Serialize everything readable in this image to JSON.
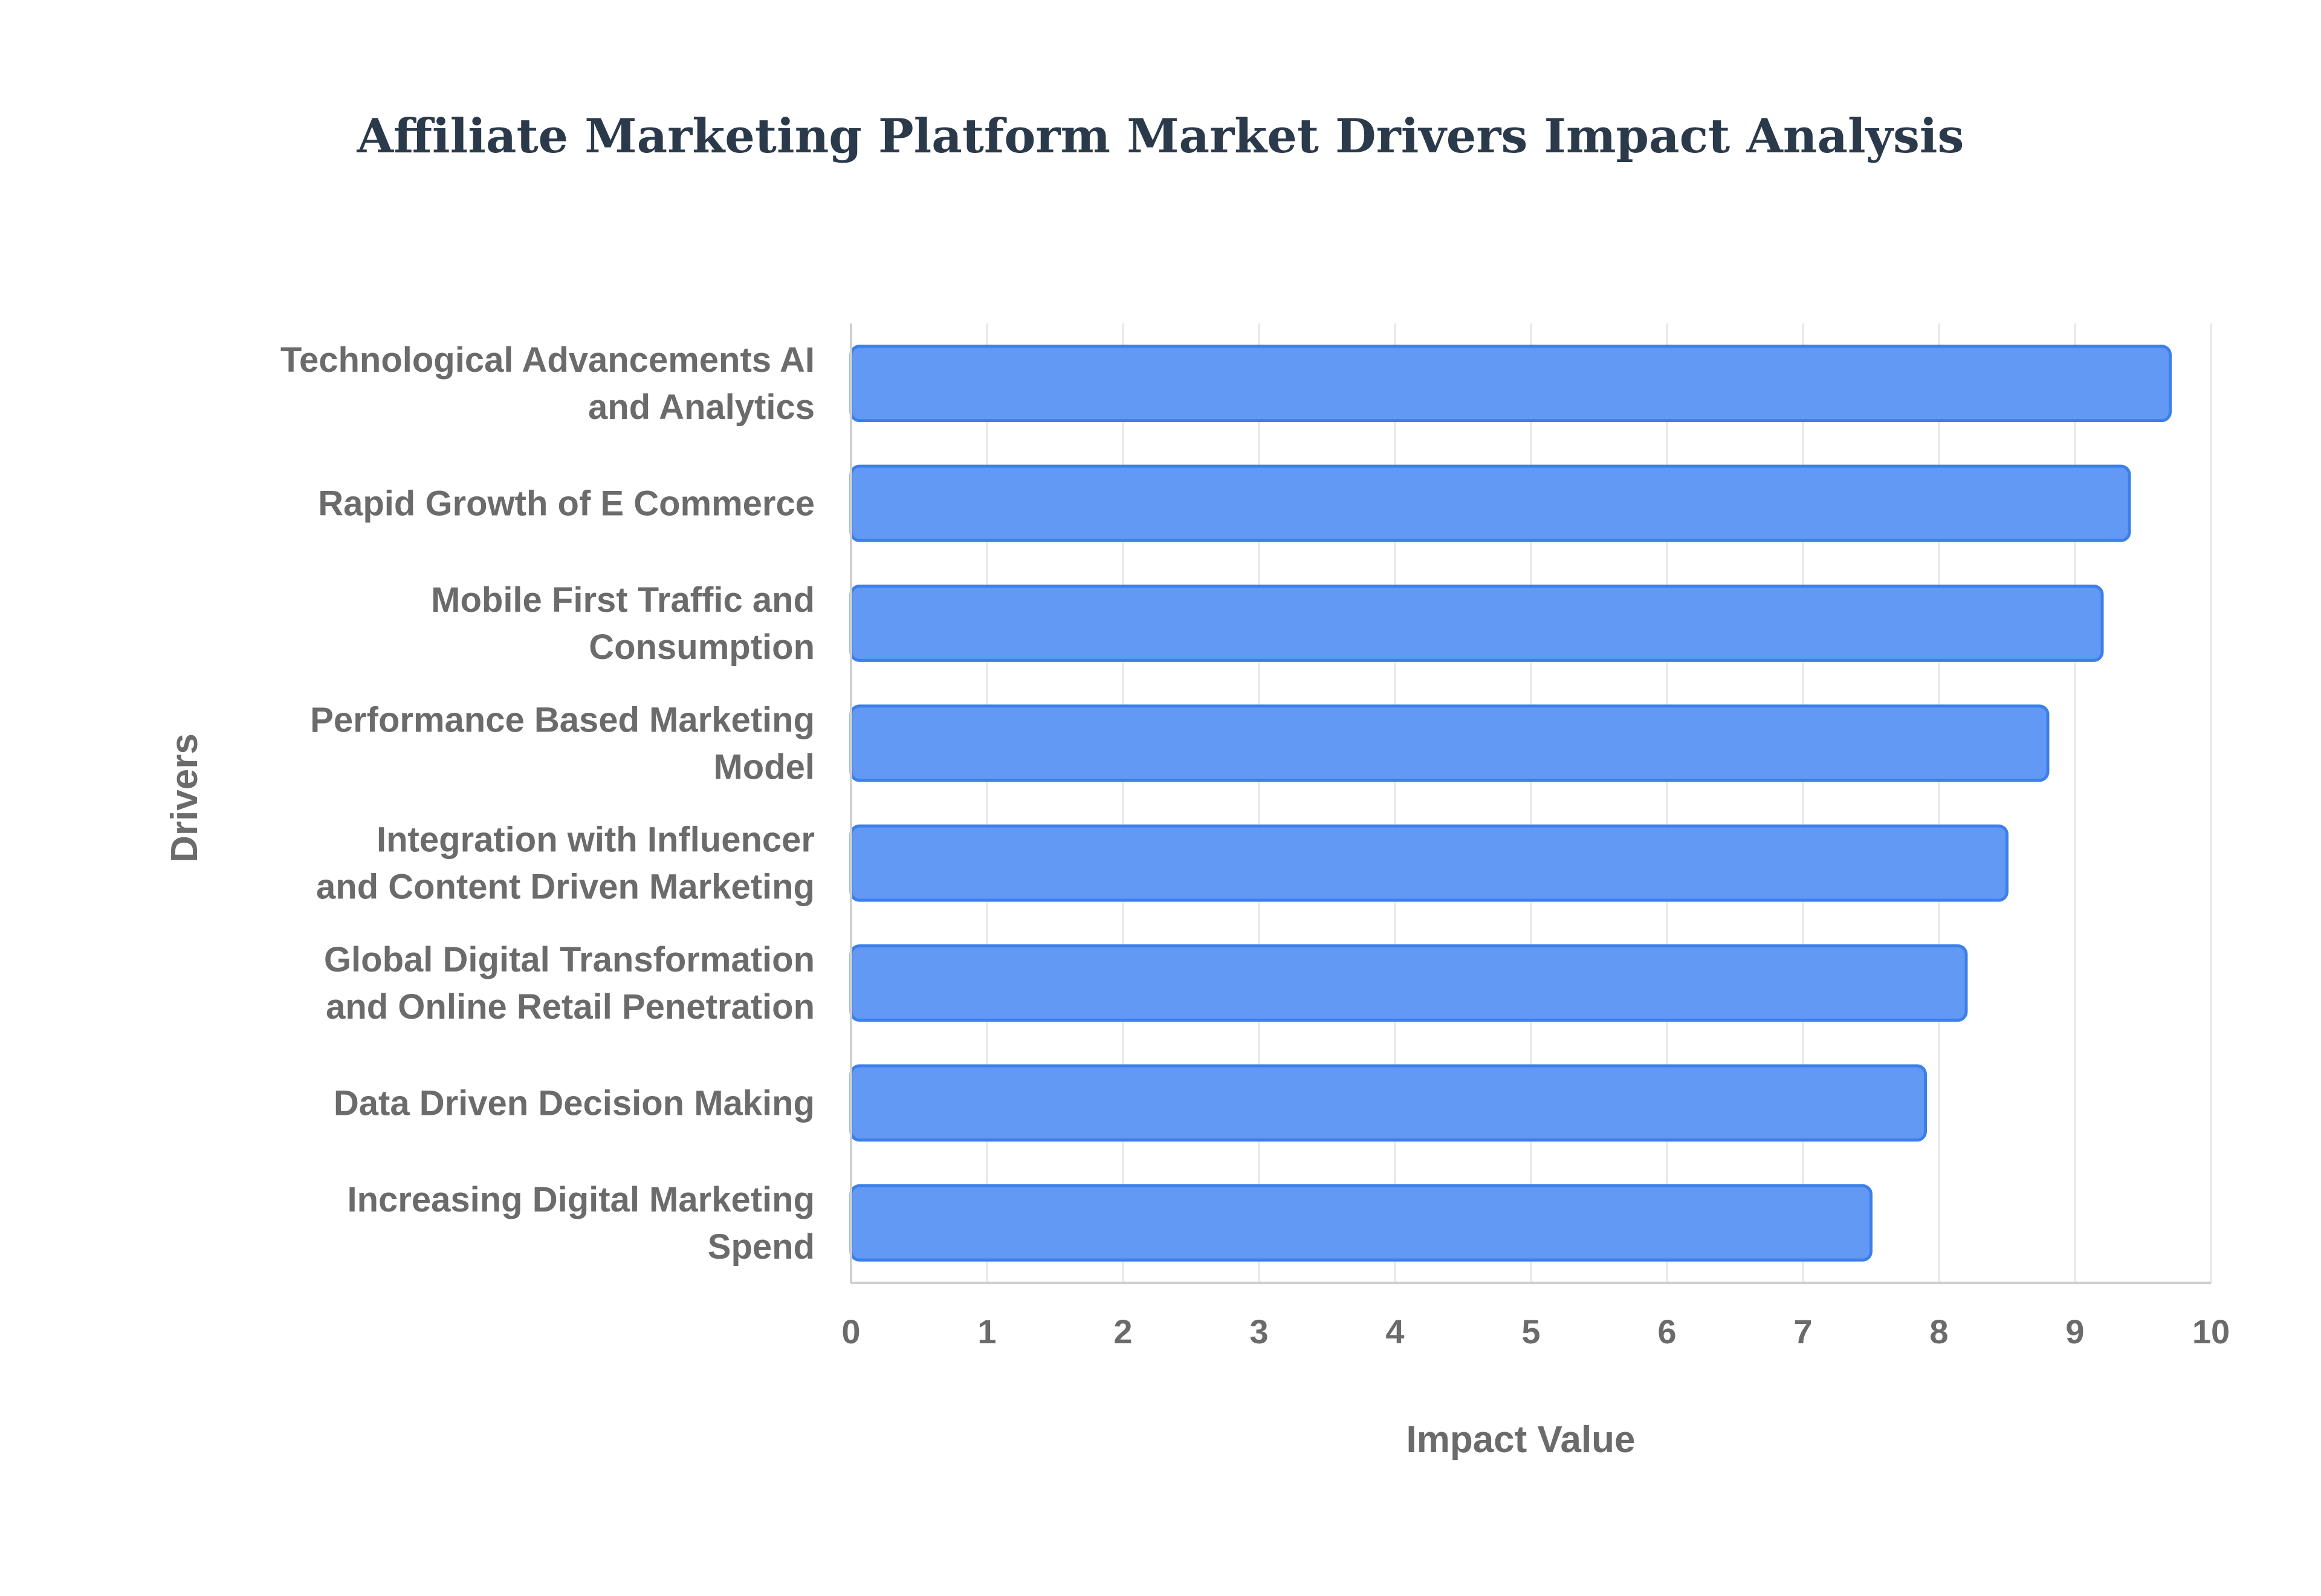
{
  "chart_data": {
    "type": "bar",
    "orientation": "horizontal",
    "title": "Affiliate Marketing Platform Market Drivers Impact Analysis",
    "xlabel": "Impact Value",
    "ylabel": "Drivers",
    "xlim": [
      0,
      10
    ],
    "xticks": [
      "0",
      "1",
      "2",
      "3",
      "4",
      "5",
      "6",
      "7",
      "8",
      "9",
      "10"
    ],
    "grid": true,
    "bar_color": "#6199f4",
    "bar_border_color": "#3d7fe8",
    "categories": [
      [
        "Technological Advancements AI",
        "and Analytics"
      ],
      [
        "Rapid Growth of E Commerce"
      ],
      [
        "Mobile First Traffic and",
        "Consumption"
      ],
      [
        "Performance Based Marketing",
        "Model"
      ],
      [
        "Integration with Influencer",
        "and Content Driven Marketing"
      ],
      [
        "Global Digital Transformation",
        "and Online Retail Penetration"
      ],
      [
        "Data Driven Decision Making"
      ],
      [
        "Increasing Digital Marketing",
        "Spend"
      ]
    ],
    "values": [
      9.7,
      9.4,
      9.2,
      8.8,
      8.5,
      8.2,
      7.9,
      7.5
    ]
  }
}
